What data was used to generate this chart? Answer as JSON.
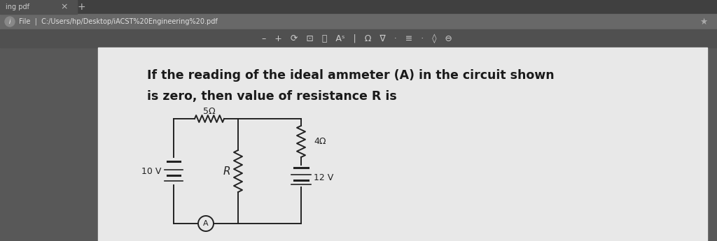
{
  "bg_color": "#585858",
  "tab_bar_color": "#404040",
  "tab_color": "#505050",
  "url_bar_color": "#686868",
  "toolbar_color": "#505050",
  "content_bg": "#c8c8c8",
  "white_area_color": "#e8e8e8",
  "tab_text": "ing pdf",
  "url_text": "C:/Users/hp/Desktop/iACST%20Engineering%20.pdf",
  "question_line1": "If the reading of the ideal ammeter (A) in the circuit shown",
  "question_line2": "is zero, then value of resistance R is",
  "circuit_color": "#222222",
  "label_5ohm": "5Ω",
  "label_4ohm": "4Ω",
  "label_R": "R",
  "label_10V": "10 V",
  "label_12V": "12 V",
  "label_A": "A",
  "text_color": "#1a1a1a",
  "font_size_question": 12.5,
  "font_size_labels": 9
}
